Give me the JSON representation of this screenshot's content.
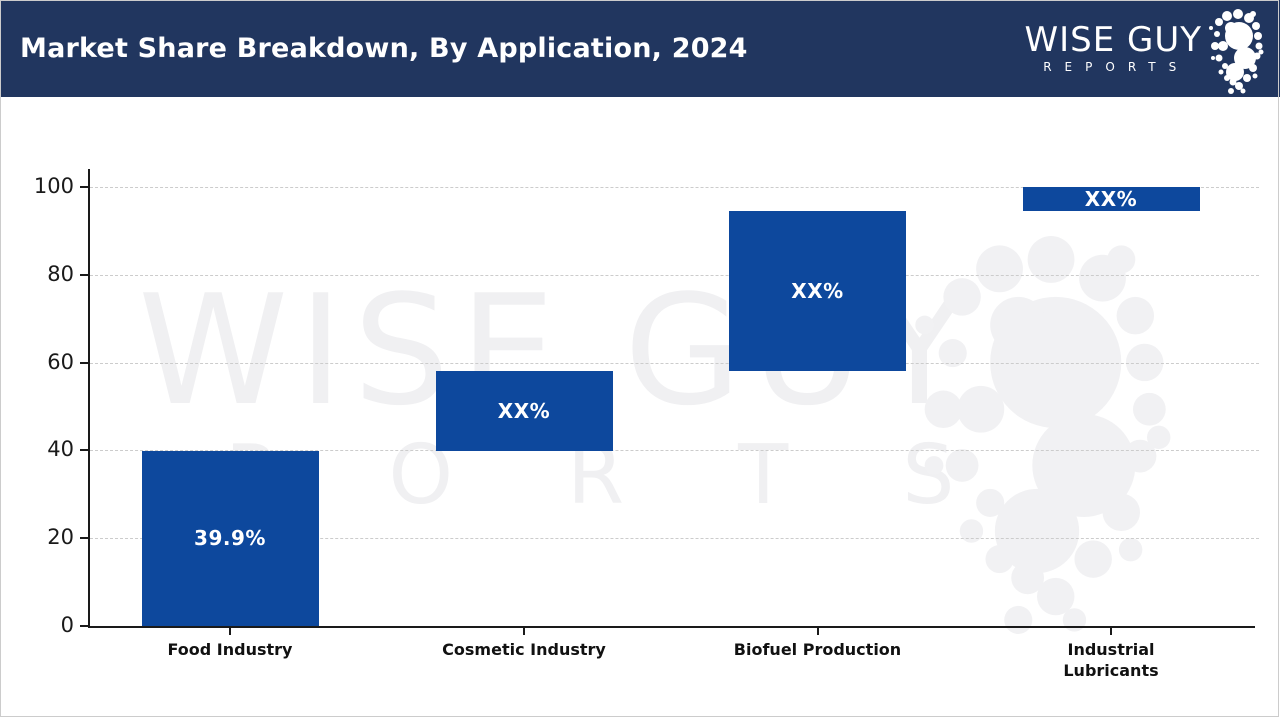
{
  "header": {
    "title": "Market Share Breakdown, By Application, 2024",
    "bg_color": "#21365f",
    "logo": {
      "line1": "WISE GUY",
      "line2": "REPORTS"
    }
  },
  "watermark": {
    "line1": "WISE GUY",
    "line2": "P O R T S"
  },
  "chart_data": {
    "type": "bar",
    "subtype": "waterfall",
    "title": "Market Share Breakdown, By Application, 2024",
    "categories": [
      "Food Industry",
      "Cosmetic Industry",
      "Biofuel Production",
      "Industrial\nLubricants"
    ],
    "segments": [
      {
        "category": "Food Industry",
        "start": 0,
        "end": 39.9,
        "label": "39.9%"
      },
      {
        "category": "Cosmetic Industry",
        "start": 39.9,
        "end": 58.0,
        "label": "XX%"
      },
      {
        "category": "Biofuel Production",
        "start": 58.0,
        "end": 94.5,
        "label": "XX%"
      },
      {
        "category": "Industrial Lubricants",
        "start": 94.5,
        "end": 100,
        "label": "XX%"
      }
    ],
    "ylim": [
      0,
      100
    ],
    "yticks": [
      0,
      20,
      40,
      60,
      80,
      100
    ],
    "grid": "horizontal-dashed",
    "legend": "none",
    "bar_color": "#0d489d",
    "bar_label_color": "#ffffff",
    "grid_color": "#cccccc",
    "axis_color": "#1a1a1a"
  }
}
